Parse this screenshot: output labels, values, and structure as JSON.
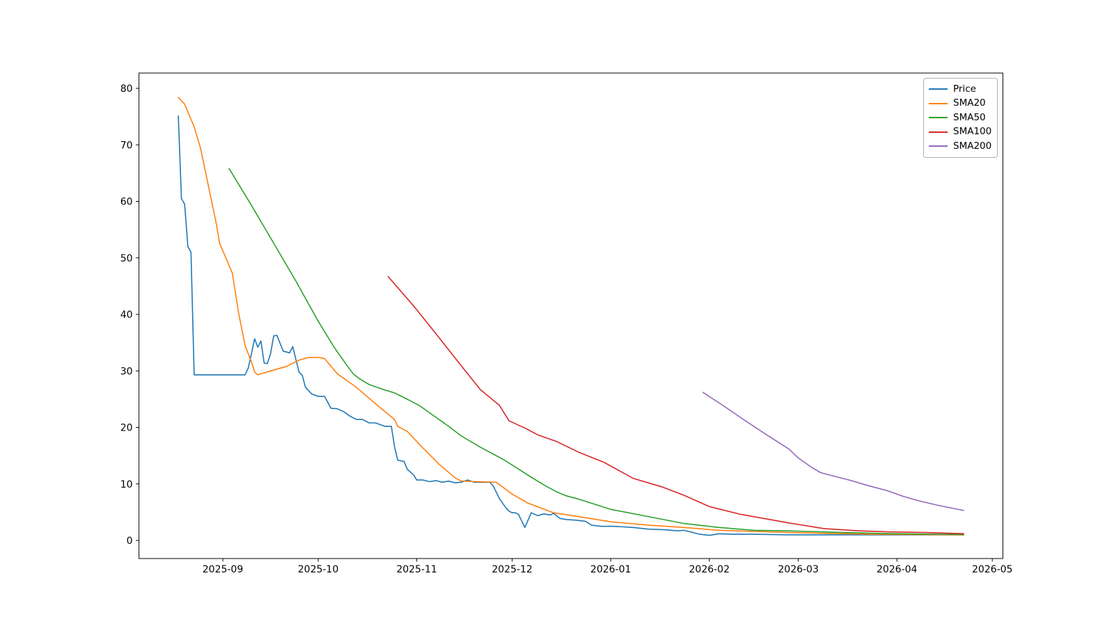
{
  "chart_data": {
    "type": "line",
    "title": "",
    "xlabel": "",
    "ylabel": "",
    "x_axis": {
      "tick_labels": [
        "2025-09",
        "2025-10",
        "2025-11",
        "2025-12",
        "2026-01",
        "2026-02",
        "2026-03",
        "2026-04",
        "2026-05"
      ],
      "tick_dates": [
        "2025-09-01",
        "2025-10-01",
        "2025-11-01",
        "2025-12-01",
        "2026-01-01",
        "2026-02-01",
        "2026-03-01",
        "2026-04-01",
        "2026-05-01"
      ]
    },
    "y_axis": {
      "tick_labels": [
        "0",
        "10",
        "20",
        "30",
        "40",
        "50",
        "60",
        "70",
        "80"
      ],
      "ticks": [
        0,
        10,
        20,
        30,
        40,
        50,
        60,
        70,
        80
      ],
      "lim": [
        -3.0,
        82.7
      ]
    },
    "xlim": [
      "2025-08-06",
      "2026-05-04"
    ],
    "grid": false,
    "legend": {
      "position": "upper right",
      "entries": [
        {
          "label": "Price",
          "color": "#1f77b4"
        },
        {
          "label": "SMA20",
          "color": "#ff7f0e"
        },
        {
          "label": "SMA50",
          "color": "#2ca02c"
        },
        {
          "label": "SMA100",
          "color": "#d62728"
        },
        {
          "label": "SMA200",
          "color": "#9467bd"
        }
      ]
    },
    "series": [
      {
        "name": "Price",
        "color": "#1f77b4",
        "points": [
          [
            "2025-08-18",
            75.1
          ],
          [
            "2025-08-19",
            60.5
          ],
          [
            "2025-08-20",
            59.5
          ],
          [
            "2025-08-21",
            52.0
          ],
          [
            "2025-08-22",
            51.0
          ],
          [
            "2025-08-23",
            29.3
          ],
          [
            "2025-09-08",
            29.3
          ],
          [
            "2025-09-09",
            30.5
          ],
          [
            "2025-09-10",
            33.0
          ],
          [
            "2025-09-11",
            35.7
          ],
          [
            "2025-09-12",
            34.2
          ],
          [
            "2025-09-13",
            35.3
          ],
          [
            "2025-09-14",
            31.4
          ],
          [
            "2025-09-15",
            31.3
          ],
          [
            "2025-09-16",
            33.0
          ],
          [
            "2025-09-17",
            36.2
          ],
          [
            "2025-09-18",
            36.3
          ],
          [
            "2025-09-20",
            33.5
          ],
          [
            "2025-09-22",
            33.2
          ],
          [
            "2025-09-23",
            34.3
          ],
          [
            "2025-09-24",
            32.0
          ],
          [
            "2025-09-25",
            29.8
          ],
          [
            "2025-09-26",
            29.2
          ],
          [
            "2025-09-27",
            27.1
          ],
          [
            "2025-09-29",
            25.9
          ],
          [
            "2025-10-01",
            25.5
          ],
          [
            "2025-10-03",
            25.5
          ],
          [
            "2025-10-05",
            23.4
          ],
          [
            "2025-10-07",
            23.3
          ],
          [
            "2025-10-09",
            22.8
          ],
          [
            "2025-10-11",
            22.0
          ],
          [
            "2025-10-13",
            21.4
          ],
          [
            "2025-10-15",
            21.4
          ],
          [
            "2025-10-17",
            20.8
          ],
          [
            "2025-10-19",
            20.8
          ],
          [
            "2025-10-22",
            20.2
          ],
          [
            "2025-10-24",
            20.2
          ],
          [
            "2025-10-25",
            16.6
          ],
          [
            "2025-10-26",
            14.2
          ],
          [
            "2025-10-28",
            14.0
          ],
          [
            "2025-10-29",
            12.6
          ],
          [
            "2025-10-31",
            11.6
          ],
          [
            "2025-11-01",
            10.7
          ],
          [
            "2025-11-03",
            10.7
          ],
          [
            "2025-11-05",
            10.4
          ],
          [
            "2025-11-07",
            10.6
          ],
          [
            "2025-11-09",
            10.3
          ],
          [
            "2025-11-11",
            10.5
          ],
          [
            "2025-11-13",
            10.2
          ],
          [
            "2025-11-15",
            10.3
          ],
          [
            "2025-11-17",
            10.7
          ],
          [
            "2025-11-19",
            10.3
          ],
          [
            "2025-11-22",
            10.3
          ],
          [
            "2025-11-24",
            10.3
          ],
          [
            "2025-11-25",
            9.7
          ],
          [
            "2025-11-27",
            7.4
          ],
          [
            "2025-11-29",
            5.8
          ],
          [
            "2025-11-30",
            5.2
          ],
          [
            "2025-12-01",
            4.9
          ],
          [
            "2025-12-02",
            4.9
          ],
          [
            "2025-12-03",
            4.6
          ],
          [
            "2025-12-05",
            2.3
          ],
          [
            "2025-12-07",
            4.9
          ],
          [
            "2025-12-09",
            4.4
          ],
          [
            "2025-12-11",
            4.7
          ],
          [
            "2025-12-13",
            4.5
          ],
          [
            "2025-12-14",
            4.8
          ],
          [
            "2025-12-16",
            3.9
          ],
          [
            "2025-12-18",
            3.7
          ],
          [
            "2025-12-21",
            3.6
          ],
          [
            "2025-12-24",
            3.4
          ],
          [
            "2025-12-26",
            2.7
          ],
          [
            "2025-12-29",
            2.5
          ],
          [
            "2026-01-02",
            2.5
          ],
          [
            "2026-01-05",
            2.4
          ],
          [
            "2026-01-08",
            2.3
          ],
          [
            "2026-01-13",
            2.0
          ],
          [
            "2026-01-18",
            1.9
          ],
          [
            "2026-01-22",
            1.7
          ],
          [
            "2026-01-24",
            1.8
          ],
          [
            "2026-01-29",
            1.1
          ],
          [
            "2026-02-01",
            0.9
          ],
          [
            "2026-02-04",
            1.2
          ],
          [
            "2026-02-08",
            1.1
          ],
          [
            "2026-02-15",
            1.1
          ],
          [
            "2026-02-26",
            1.0
          ],
          [
            "2026-03-15",
            1.0
          ],
          [
            "2026-04-01",
            1.0
          ],
          [
            "2026-04-22",
            1.0
          ]
        ]
      },
      {
        "name": "SMA20",
        "color": "#ff7f0e",
        "points": [
          [
            "2025-08-18",
            78.4
          ],
          [
            "2025-08-20",
            77.2
          ],
          [
            "2025-08-23",
            73.2
          ],
          [
            "2025-08-25",
            69.4
          ],
          [
            "2025-08-27",
            64.0
          ],
          [
            "2025-08-30",
            55.9
          ],
          [
            "2025-08-31",
            52.6
          ],
          [
            "2025-09-04",
            47.3
          ],
          [
            "2025-09-06",
            40.2
          ],
          [
            "2025-09-08",
            34.5
          ],
          [
            "2025-09-10",
            31.6
          ],
          [
            "2025-09-11",
            29.8
          ],
          [
            "2025-09-12",
            29.3
          ],
          [
            "2025-09-16",
            30.0
          ],
          [
            "2025-09-21",
            30.8
          ],
          [
            "2025-09-25",
            31.9
          ],
          [
            "2025-09-28",
            32.4
          ],
          [
            "2025-10-01",
            32.4
          ],
          [
            "2025-10-03",
            32.2
          ],
          [
            "2025-10-07",
            29.5
          ],
          [
            "2025-10-13",
            27.1
          ],
          [
            "2025-10-19",
            24.2
          ],
          [
            "2025-10-25",
            21.4
          ],
          [
            "2025-10-26",
            20.2
          ],
          [
            "2025-10-29",
            19.3
          ],
          [
            "2025-11-02",
            16.9
          ],
          [
            "2025-11-08",
            13.5
          ],
          [
            "2025-11-13",
            11.1
          ],
          [
            "2025-11-15",
            10.5
          ],
          [
            "2025-11-20",
            10.4
          ],
          [
            "2025-11-26",
            10.3
          ],
          [
            "2025-12-01",
            8.2
          ],
          [
            "2025-12-06",
            6.6
          ],
          [
            "2025-12-14",
            4.9
          ],
          [
            "2025-12-21",
            4.3
          ],
          [
            "2026-01-01",
            3.3
          ],
          [
            "2026-01-13",
            2.7
          ],
          [
            "2026-01-24",
            2.3
          ],
          [
            "2026-02-04",
            1.8
          ],
          [
            "2026-02-15",
            1.6
          ],
          [
            "2026-02-26",
            1.4
          ],
          [
            "2026-03-24",
            1.1
          ],
          [
            "2026-04-22",
            1.0
          ]
        ]
      },
      {
        "name": "SMA50",
        "color": "#2ca02c",
        "points": [
          [
            "2025-09-03",
            65.8
          ],
          [
            "2025-09-10",
            59.3
          ],
          [
            "2025-09-17",
            52.6
          ],
          [
            "2025-09-24",
            45.9
          ],
          [
            "2025-10-01",
            38.8
          ],
          [
            "2025-10-06",
            34.2
          ],
          [
            "2025-10-10",
            31.0
          ],
          [
            "2025-10-12",
            29.5
          ],
          [
            "2025-10-14",
            28.6
          ],
          [
            "2025-10-17",
            27.6
          ],
          [
            "2025-10-21",
            26.8
          ],
          [
            "2025-10-25",
            26.1
          ],
          [
            "2025-10-29",
            25.0
          ],
          [
            "2025-11-02",
            23.8
          ],
          [
            "2025-11-07",
            21.8
          ],
          [
            "2025-11-11",
            20.2
          ],
          [
            "2025-11-15",
            18.5
          ],
          [
            "2025-11-21",
            16.5
          ],
          [
            "2025-11-28",
            14.4
          ],
          [
            "2025-12-02",
            13.0
          ],
          [
            "2025-12-05",
            11.9
          ],
          [
            "2025-12-09",
            10.5
          ],
          [
            "2025-12-12",
            9.5
          ],
          [
            "2025-12-15",
            8.6
          ],
          [
            "2025-12-18",
            7.9
          ],
          [
            "2025-12-22",
            7.3
          ],
          [
            "2026-01-01",
            5.5
          ],
          [
            "2026-01-13",
            4.2
          ],
          [
            "2026-01-24",
            3.0
          ],
          [
            "2026-02-04",
            2.3
          ],
          [
            "2026-02-15",
            1.8
          ],
          [
            "2026-02-26",
            1.7
          ],
          [
            "2026-03-15",
            1.4
          ],
          [
            "2026-03-31",
            1.2
          ],
          [
            "2026-04-22",
            1.05
          ]
        ]
      },
      {
        "name": "SMA100",
        "color": "#d62728",
        "points": [
          [
            "2025-10-23",
            46.7
          ],
          [
            "2025-10-31",
            41.5
          ],
          [
            "2025-11-07",
            36.6
          ],
          [
            "2025-11-14",
            31.6
          ],
          [
            "2025-11-21",
            26.7
          ],
          [
            "2025-11-27",
            23.9
          ],
          [
            "2025-11-30",
            21.2
          ],
          [
            "2025-12-03",
            20.4
          ],
          [
            "2025-12-05",
            19.9
          ],
          [
            "2025-12-09",
            18.7
          ],
          [
            "2025-12-15",
            17.5
          ],
          [
            "2025-12-22",
            15.6
          ],
          [
            "2025-12-30",
            13.8
          ],
          [
            "2026-01-08",
            11.0
          ],
          [
            "2026-01-17",
            9.5
          ],
          [
            "2026-01-24",
            8.0
          ],
          [
            "2026-02-01",
            6.0
          ],
          [
            "2026-02-11",
            4.6
          ],
          [
            "2026-02-19",
            3.8
          ],
          [
            "2026-02-26",
            3.1
          ],
          [
            "2026-03-09",
            2.1
          ],
          [
            "2026-03-20",
            1.7
          ],
          [
            "2026-03-31",
            1.5
          ],
          [
            "2026-04-10",
            1.4
          ],
          [
            "2026-04-22",
            1.2
          ]
        ]
      },
      {
        "name": "SMA200",
        "color": "#9467bd",
        "points": [
          [
            "2026-01-30",
            26.2
          ],
          [
            "2026-02-05",
            24.0
          ],
          [
            "2026-02-12",
            21.3
          ],
          [
            "2026-02-19",
            18.7
          ],
          [
            "2026-02-26",
            16.2
          ],
          [
            "2026-03-01",
            14.6
          ],
          [
            "2026-03-05",
            13.0
          ],
          [
            "2026-03-08",
            12.0
          ],
          [
            "2026-03-12",
            11.4
          ],
          [
            "2026-03-17",
            10.7
          ],
          [
            "2026-03-23",
            9.7
          ],
          [
            "2026-03-29",
            8.8
          ],
          [
            "2026-04-03",
            7.8
          ],
          [
            "2026-04-08",
            7.0
          ],
          [
            "2026-04-14",
            6.2
          ],
          [
            "2026-04-22",
            5.3
          ]
        ]
      }
    ]
  }
}
